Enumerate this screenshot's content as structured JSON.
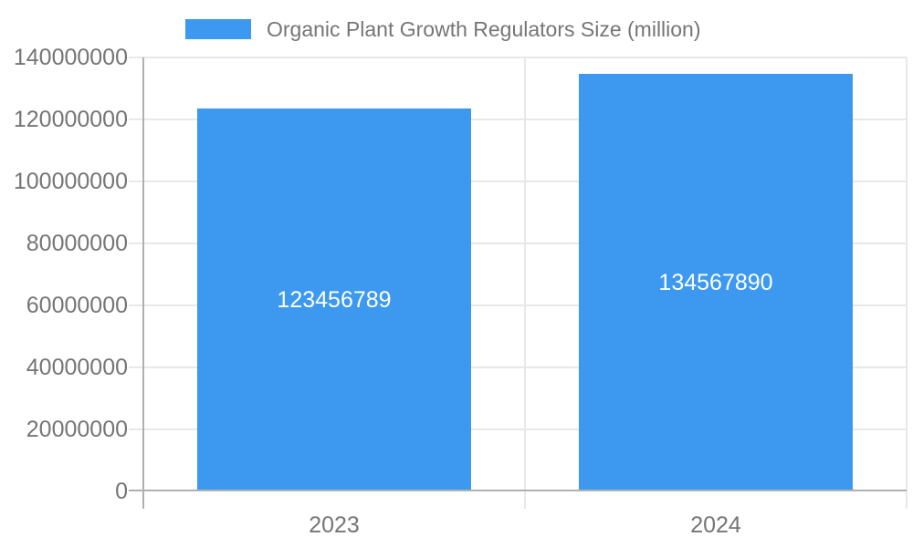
{
  "legend": {
    "label": "Organic Plant Growth Regulators Size (million)"
  },
  "chart_data": {
    "type": "bar",
    "title": "Organic Plant Growth Regulators Size (million)",
    "categories": [
      "2023",
      "2024"
    ],
    "values": [
      123456789,
      134567890
    ],
    "bar_labels": [
      "123456789",
      "134567890"
    ],
    "yticks": [
      0,
      20000000,
      40000000,
      60000000,
      80000000,
      100000000,
      120000000,
      140000000
    ],
    "ytick_labels": [
      "0",
      "20000000",
      "40000000",
      "60000000",
      "80000000",
      "100000000",
      "120000000",
      "140000000"
    ],
    "ylim": [
      0,
      140000000
    ],
    "xlabel": "",
    "ylabel": "",
    "grid": true,
    "legend_position": "top",
    "colors": {
      "bar": "#3C99EF",
      "bar_value_label": "#ffffff",
      "axis_text": "#757575",
      "gridline": "#e8e8e8",
      "baseline": "#b0b0b0",
      "background": "#ffffff"
    }
  }
}
